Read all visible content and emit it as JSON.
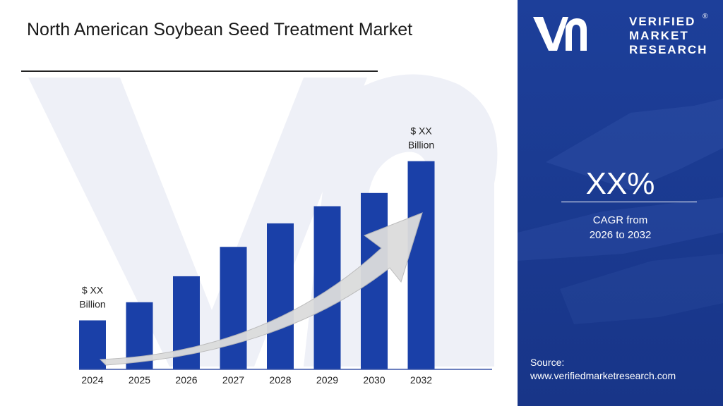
{
  "header": {
    "title": "North American Soybean Seed Treatment Market"
  },
  "chart_data": {
    "type": "bar",
    "title": "North American Soybean Seed Treatment Market",
    "categories": [
      "2024",
      "2025",
      "2026",
      "2027",
      "2028",
      "2029",
      "2030",
      "2032"
    ],
    "series": [
      {
        "values": [
          1.0,
          1.37,
          1.9,
          2.5,
          2.98,
          3.33,
          3.6,
          4.25
        ]
      }
    ],
    "annotations": {
      "first_bar_label": [
        "$ XX",
        "Billion"
      ],
      "last_bar_label": [
        "$ XX",
        "Billion"
      ]
    },
    "ylim": [
      0,
      5
    ],
    "grid": false,
    "bar_color": "#1a40a8",
    "trend_arrow": true
  },
  "sidebar": {
    "brand_lines": [
      "VERIFIED",
      "MARKET",
      "RESEARCH"
    ],
    "brand_registered": "®",
    "cagr_value": "XX%",
    "cagr_label_line1": "CAGR from",
    "cagr_label_line2": "2026 to 2032",
    "source_label": "Source:",
    "source_url": "www.verifiedmarketresearch.com",
    "panel_color": "#1b3d95"
  }
}
